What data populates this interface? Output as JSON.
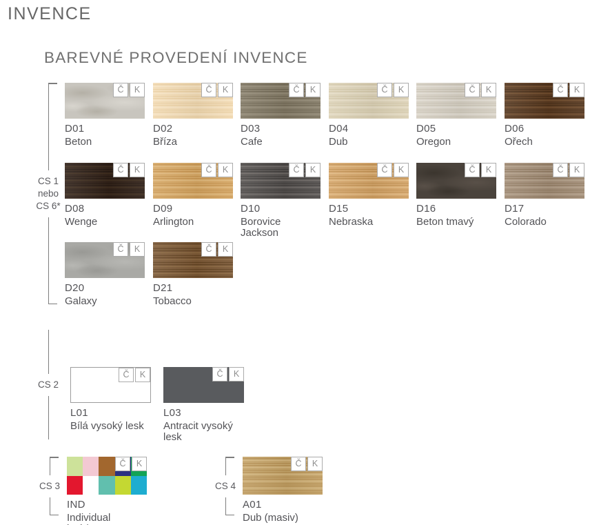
{
  "header": {
    "title": "INVENCE",
    "section_heading": "BAREVNÉ PROVEDENÍ INVENCE"
  },
  "corner_tags": {
    "left": "Č",
    "right": "K"
  },
  "sections": {
    "cs1": {
      "bracket_label_lines": [
        "CS 1",
        "nebo",
        "CS 6*"
      ],
      "rows": [
        [
          {
            "code": "D01",
            "name": "Beton",
            "texture": "concrete",
            "colors": [
              "#c8c5be",
              "#b4b0a6",
              "#d8d5ce"
            ]
          },
          {
            "code": "D02",
            "name": "Bříza",
            "texture": "wood",
            "colors": [
              "#f3dcb6",
              "#e9cd9e",
              "#f9e7c8"
            ]
          },
          {
            "code": "D03",
            "name": "Cafe",
            "texture": "wood",
            "colors": [
              "#867d69",
              "#6c634f",
              "#978e7a"
            ]
          },
          {
            "code": "D04",
            "name": "Dub",
            "texture": "wood",
            "colors": [
              "#ded4ba",
              "#d1c5a5",
              "#e9e0ca"
            ]
          },
          {
            "code": "D05",
            "name": "Oregon",
            "texture": "wood",
            "colors": [
              "#d8d2c6",
              "#c8c1b2",
              "#e5e0d7"
            ]
          },
          {
            "code": "D06",
            "name": "Ořech",
            "texture": "wood",
            "colors": [
              "#5c3c22",
              "#432a14",
              "#775230"
            ]
          }
        ],
        [
          {
            "code": "D08",
            "name": "Wenge",
            "texture": "wood",
            "colors": [
              "#332319",
              "#231710",
              "#42301f"
            ]
          },
          {
            "code": "D09",
            "name": "Arlington",
            "texture": "wood",
            "colors": [
              "#d7a967",
              "#c4904a",
              "#e3bd82"
            ]
          },
          {
            "code": "D10",
            "name": "Borovice Jackson",
            "texture": "wood",
            "colors": [
              "#565250",
              "#3d3a38",
              "#736e6a"
            ]
          },
          {
            "code": "D15",
            "name": "Nebraska",
            "texture": "wood",
            "colors": [
              "#d6a76c",
              "#bf8e4d",
              "#e4be86"
            ]
          },
          {
            "code": "D16",
            "name": "Beton tmavý",
            "texture": "concrete",
            "colors": [
              "#4a433c",
              "#3b352e",
              "#595048"
            ]
          },
          {
            "code": "D17",
            "name": "Colorado",
            "texture": "wood",
            "colors": [
              "#a5907a",
              "#8c765c",
              "#b7a58e"
            ]
          }
        ],
        [
          {
            "code": "D20",
            "name": "Galaxy",
            "texture": "concrete",
            "colors": [
              "#a9a9a5",
              "#999995",
              "#b7b7b3"
            ]
          },
          {
            "code": "D21",
            "name": "Tobacco",
            "texture": "wood",
            "colors": [
              "#7a5735",
              "#60411f",
              "#906d43"
            ]
          }
        ]
      ]
    },
    "cs2": {
      "bracket_label_lines": [
        "CS 2"
      ],
      "rows": [
        [
          {
            "code": "L01",
            "name": "Bílá vysoký lesk",
            "texture": "gloss-white",
            "colors": [
              "#ffffff",
              "#9c9c9c"
            ]
          },
          {
            "code": "L03",
            "name": "Antracit vysoký lesk",
            "texture": "gloss-dark",
            "colors": [
              "#595b5e"
            ]
          }
        ]
      ]
    },
    "cs3": {
      "bracket_label_lines": [
        "CS 3"
      ],
      "rows": [
        [
          {
            "code": "IND",
            "name": "Individual lesk/mat",
            "texture": "multicolor",
            "colors": [
              "#cde29a",
              "#f3c9d3",
              "#a2672e",
              "#2b3282",
              "#13a356",
              "#e3172e",
              "#ffffff",
              "#61bfae",
              "#c4d832",
              "#1eadd0"
            ]
          }
        ]
      ]
    },
    "cs4": {
      "bracket_label_lines": [
        "CS 4"
      ],
      "rows": [
        [
          {
            "code": "A01",
            "name": "Dub (masiv)",
            "texture": "wood",
            "colors": [
              "#c5a469",
              "#b0884a",
              "#d7ba84"
            ]
          }
        ]
      ]
    }
  }
}
